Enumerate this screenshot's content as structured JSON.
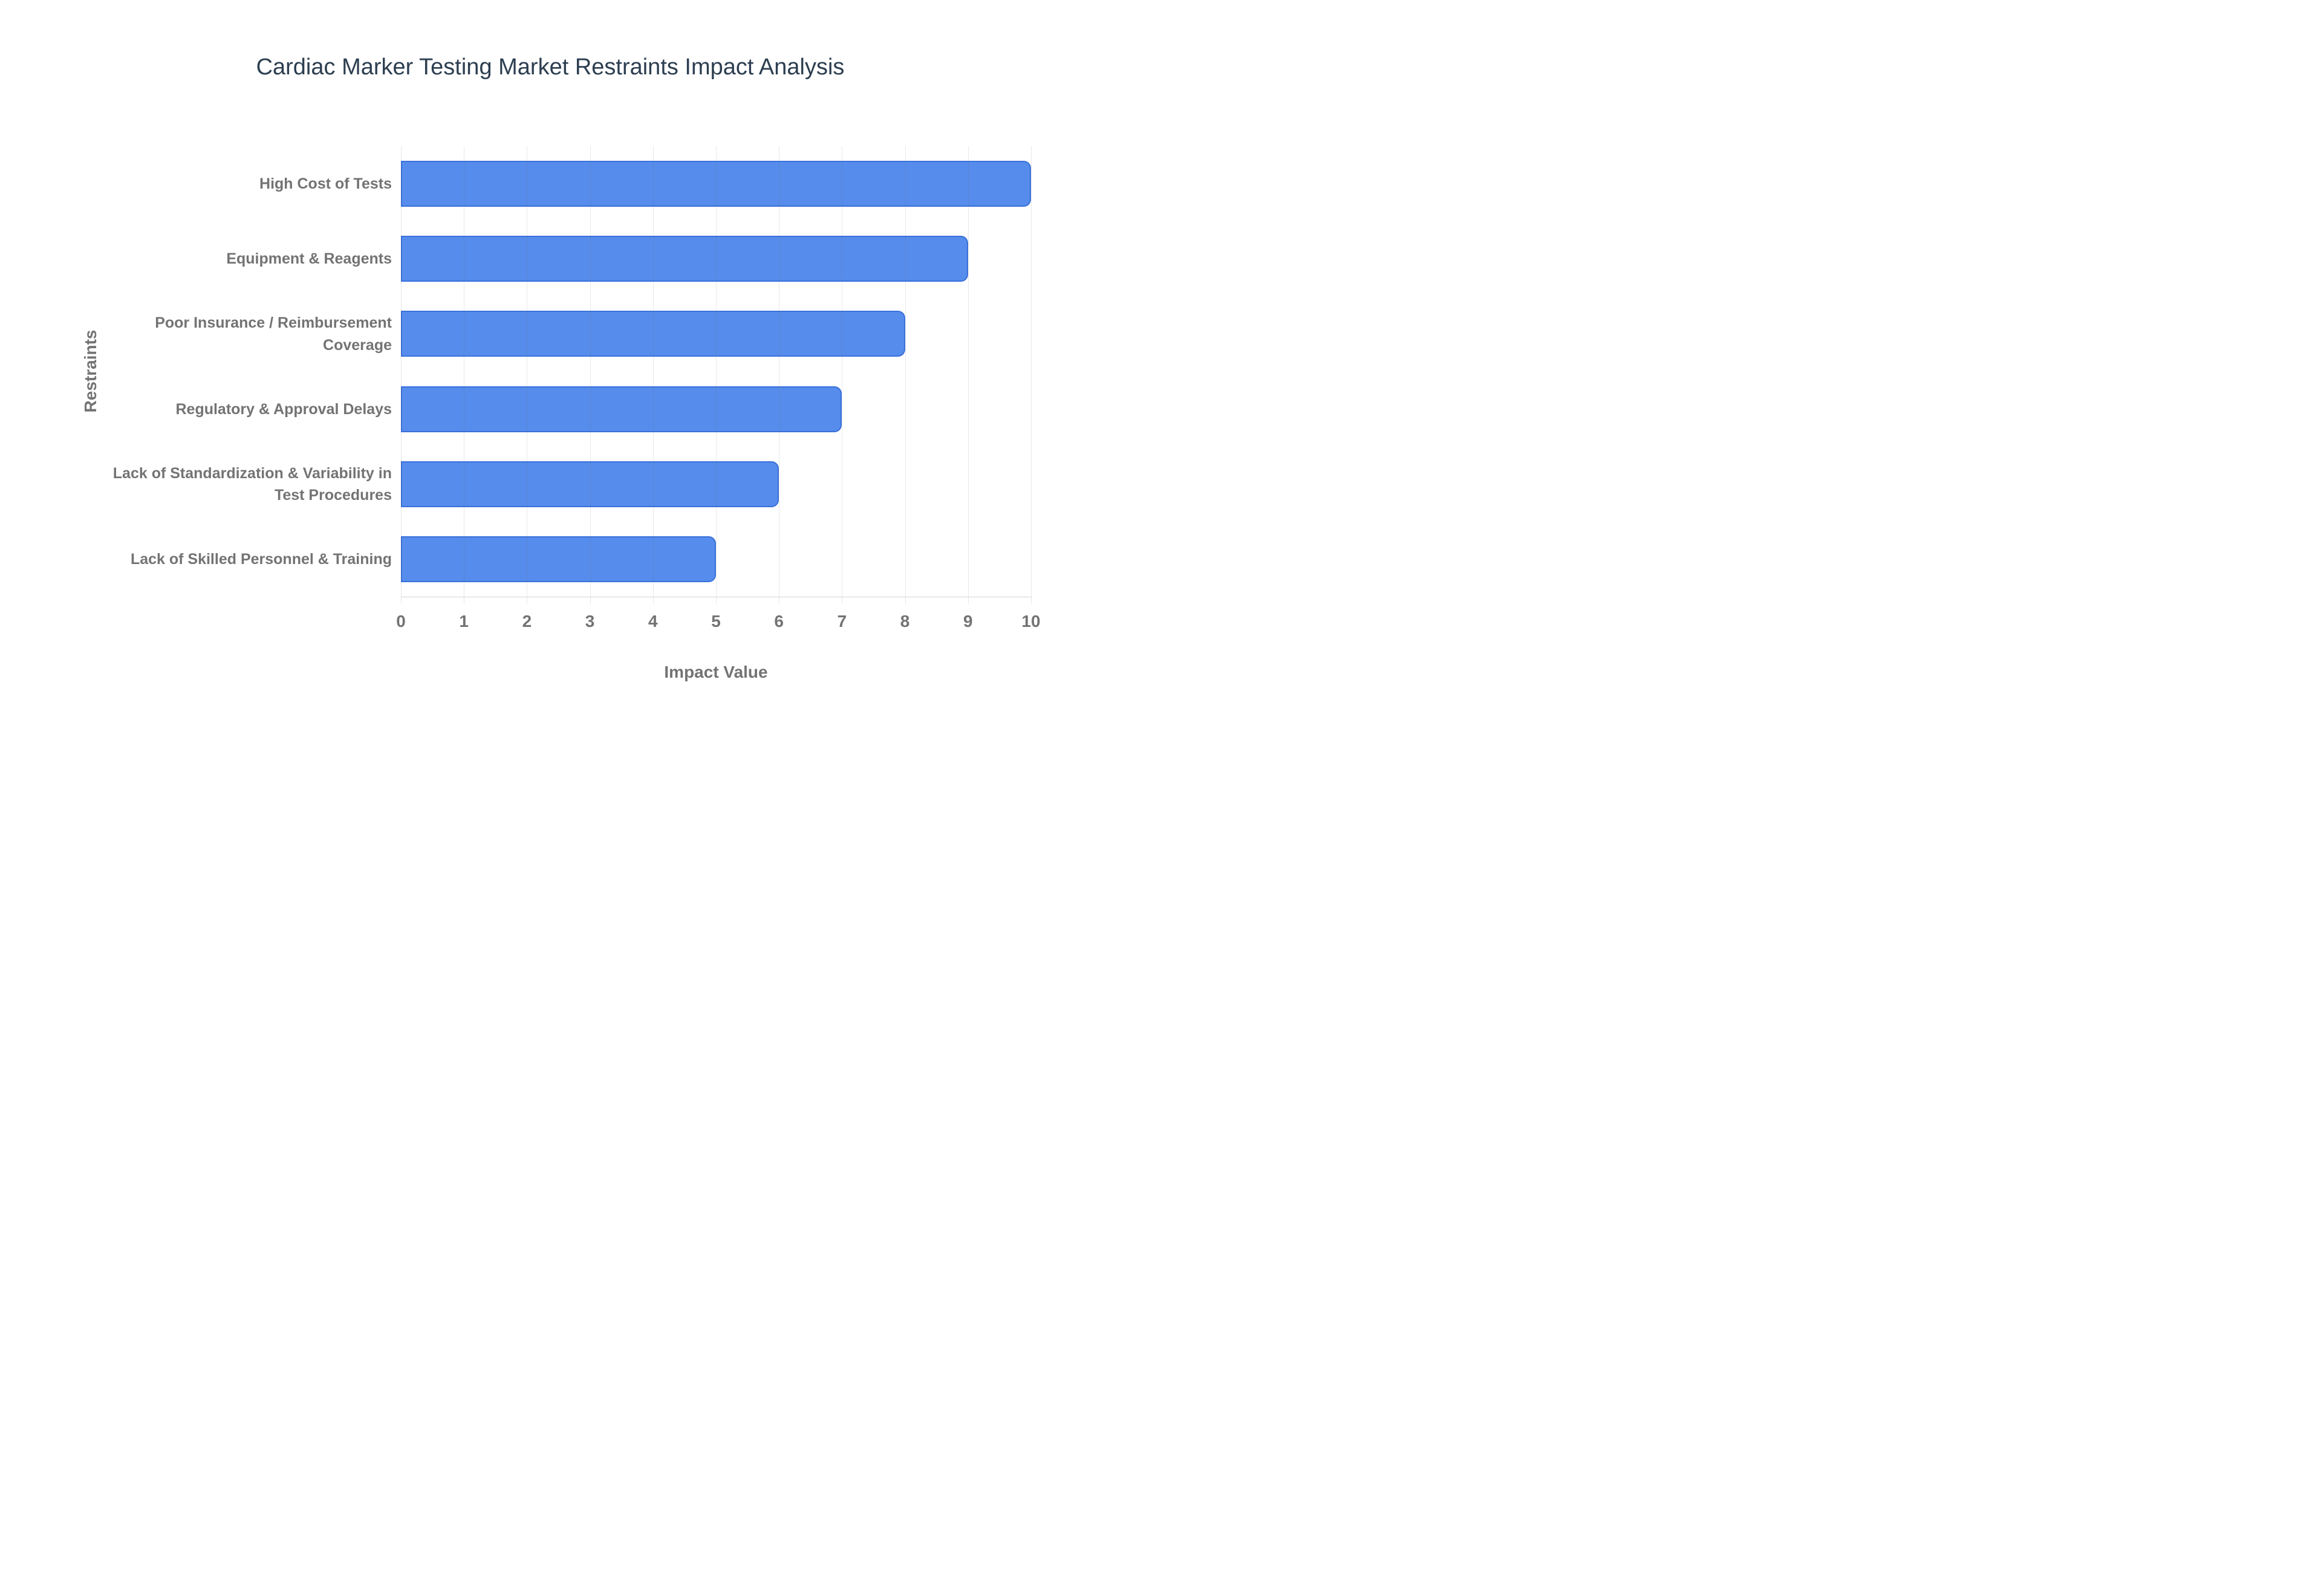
{
  "chart_data": {
    "type": "bar",
    "orientation": "horizontal",
    "title": "Cardiac Marker Testing Market Restraints Impact Analysis",
    "categories": [
      "High Cost of Tests",
      "Equipment & Reagents",
      "Poor Insurance / Reimbursement Coverage",
      "Regulatory & Approval Delays",
      "Lack of Standardization & Variability in Test Procedures",
      "Lack of Skilled Personnel & Training"
    ],
    "values": [
      10,
      9,
      8,
      7,
      6,
      5
    ],
    "xlabel": "Impact Value",
    "ylabel": "Restraints",
    "xlim": [
      0,
      10
    ],
    "xticks": [
      0,
      1,
      2,
      3,
      4,
      5,
      6,
      7,
      8,
      9,
      10
    ],
    "grid": true,
    "legend": "none",
    "colors": {
      "bar_fill": "#568ceb",
      "bar_border": "#3a70dc",
      "title_text": "#2c3e50",
      "axis_text": "#737373",
      "gridline": "#e3e3e3",
      "background": "#ffffff"
    }
  }
}
